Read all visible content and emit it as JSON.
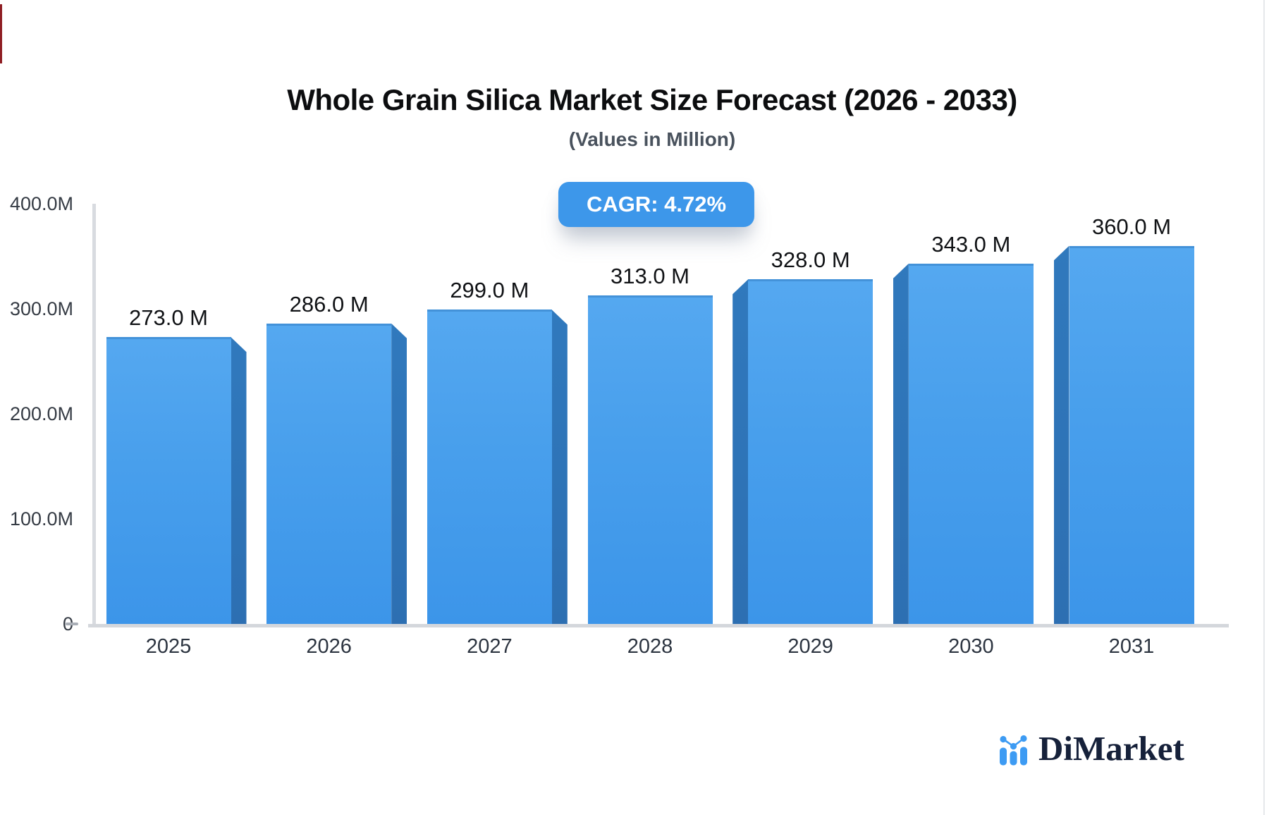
{
  "page": {
    "title": "Whole Grain Silica Market Size Forecast (2026 - 2033)",
    "subtitle": "(Values in Million)",
    "cagr_label": "CAGR: 4.72%"
  },
  "brand": {
    "name": "DiMarket",
    "icon": "bar-chart-logo-icon",
    "icon_color": "#3d9bf3",
    "text_color": "#16213a"
  },
  "colors": {
    "bar_face_top": "#55a8f0",
    "bar_face_bottom": "#3c95e9",
    "bar_side": "#2e74b8",
    "badge_bg": "#3d97ea",
    "axis_line": "#d8dbe0",
    "tick_text": "#363c45",
    "category_text": "#2c3440",
    "value_text": "#101215",
    "left_edge_sliver_red": "#8f1e24"
  },
  "chart_data": {
    "type": "bar",
    "style": "pseudo-3d-extruded-bars",
    "title": "Whole Grain Silica Market Size Forecast (2026 - 2033)",
    "subtitle": "(Values in Million)",
    "unit": "Million",
    "cagr": "CAGR: 4.72%",
    "categories": [
      "2025",
      "2026",
      "2027",
      "2028",
      "2029",
      "2030",
      "2031"
    ],
    "values": [
      273.0,
      286.0,
      299.0,
      313.0,
      328.0,
      343.0,
      360.0
    ],
    "value_labels": [
      "273.0 M",
      "286.0 M",
      "299.0 M",
      "313.0 M",
      "328.0 M",
      "343.0 M",
      "360.0 M"
    ],
    "yticks": [
      {
        "label": "400.0M",
        "value": 400
      },
      {
        "label": "300.0M",
        "value": 300
      },
      {
        "label": "200.0M",
        "value": 200
      },
      {
        "label": "100.0M",
        "value": 100
      },
      {
        "label": "0",
        "value": 0
      }
    ],
    "ylim": [
      0,
      400
    ],
    "xlabel": "",
    "ylabel": "",
    "grid": false,
    "legend": "none"
  }
}
